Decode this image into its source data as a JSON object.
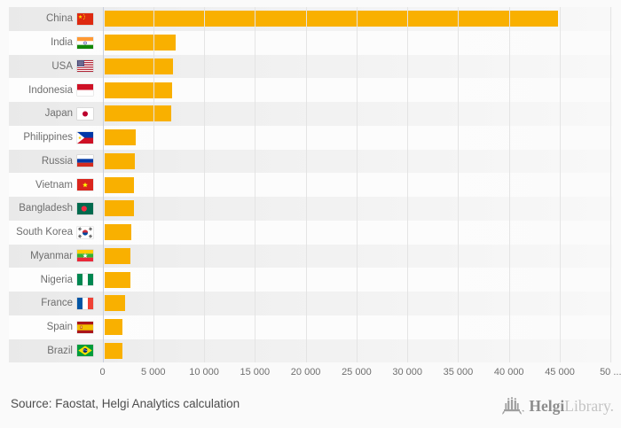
{
  "chart_data": {
    "type": "bar",
    "orientation": "horizontal",
    "title": "",
    "xlabel": "",
    "ylabel": "",
    "categories": [
      "China",
      "India",
      "USA",
      "Indonesia",
      "Japan",
      "Philippines",
      "Russia",
      "Vietnam",
      "Bangladesh",
      "South Korea",
      "Myanmar",
      "Nigeria",
      "France",
      "Spain",
      "Brazil"
    ],
    "values": [
      44650,
      7000,
      6800,
      6700,
      6600,
      3100,
      3000,
      2950,
      2900,
      2700,
      2600,
      2550,
      2050,
      1800,
      1750
    ],
    "flag_icons": [
      "flag-china-icon",
      "flag-india-icon",
      "flag-usa-icon",
      "flag-indonesia-icon",
      "flag-japan-icon",
      "flag-philippines-icon",
      "flag-russia-icon",
      "flag-vietnam-icon",
      "flag-bangladesh-icon",
      "flag-south-korea-icon",
      "flag-myanmar-icon",
      "flag-nigeria-icon",
      "flag-france-icon",
      "flag-spain-icon",
      "flag-brazil-icon"
    ],
    "flag_keys": [
      "china",
      "india",
      "usa",
      "indonesia",
      "japan",
      "philippines",
      "russia",
      "vietnam",
      "bangladesh",
      "south-korea",
      "myanmar",
      "nigeria",
      "france",
      "spain",
      "brazil"
    ],
    "xlim": [
      0,
      50000
    ],
    "tick_values": [
      0,
      5000,
      10000,
      15000,
      20000,
      25000,
      30000,
      35000,
      40000,
      45000,
      50000
    ],
    "tick_labels": [
      "0",
      "5 000",
      "10 000",
      "15 000",
      "20 000",
      "25 000",
      "30 000",
      "35 000",
      "40 000",
      "45 000",
      "50 ..."
    ],
    "grid": true,
    "legend": false,
    "bar_color": "#f9b000",
    "stripe_color": "#ebebeb",
    "background_color": "#fafafa",
    "gridline_color": "#e4e4e4",
    "zero_axis_color": "#c9cfdd"
  },
  "footer": {
    "source": "Source: Faostat, Helgi Analytics calculation"
  },
  "logo": {
    "brand_bold": "Helgi",
    "brand_light": "Library."
  }
}
